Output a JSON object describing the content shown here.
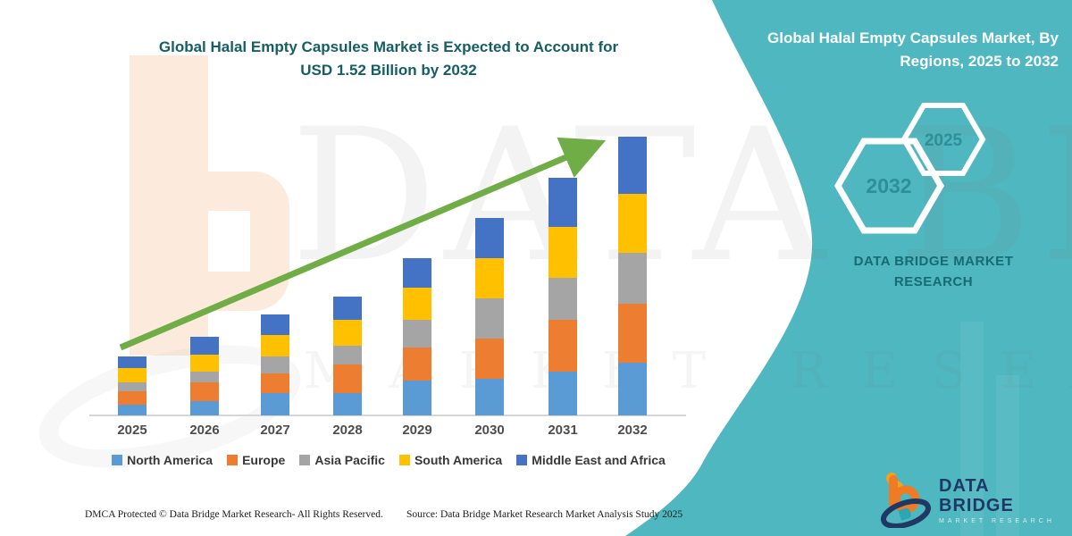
{
  "header": {
    "chart_title_line1": "Global Halal Empty Capsules Market is Expected to Account for",
    "chart_title_line2": "USD 1.52 Billion by 2032"
  },
  "side_panel": {
    "title": "Global Halal Empty Capsules Market, By Regions, 2025 to 2032",
    "hexagon_back_label": "2032",
    "hexagon_front_label": "2025",
    "brand_line1": "DATA BRIDGE MARKET",
    "brand_line2": "RESEARCH",
    "panel_color": "#4FB7C0"
  },
  "logo": {
    "name": "DATA BRIDGE",
    "tagline": "MARKET RESEARCH"
  },
  "watermark": {
    "text_primary": "DATA BRIDGE",
    "text_secondary": "MARKET RESEARCH"
  },
  "footer": {
    "left": "DMCA Protected © Data Bridge Market Research-  All Rights Reserved.",
    "right": "Source: Data Bridge Market Research  Market Analysis Study 2025"
  },
  "chart_data": {
    "type": "bar",
    "stacked": true,
    "title": "Global Halal Empty Capsules Market is Expected to Account for USD 1.52 Billion by 2032",
    "unit": "USD Billion",
    "categories": [
      "2025",
      "2026",
      "2027",
      "2028",
      "2029",
      "2030",
      "2031",
      "2032"
    ],
    "series": [
      {
        "name": "North America",
        "color": "#5B9BD5",
        "values": [
          0.06,
          0.08,
          0.12,
          0.12,
          0.19,
          0.2,
          0.24,
          0.29
        ]
      },
      {
        "name": "Europe",
        "color": "#ED7D31",
        "values": [
          0.07,
          0.1,
          0.11,
          0.16,
          0.18,
          0.22,
          0.28,
          0.32
        ]
      },
      {
        "name": "Asia Pacific",
        "color": "#A5A5A5",
        "values": [
          0.05,
          0.06,
          0.09,
          0.1,
          0.15,
          0.22,
          0.23,
          0.28
        ]
      },
      {
        "name": "South America",
        "color": "#FFC000",
        "values": [
          0.08,
          0.09,
          0.12,
          0.14,
          0.18,
          0.22,
          0.28,
          0.32
        ]
      },
      {
        "name": "Middle East and Africa",
        "color": "#4472C4",
        "values": [
          0.06,
          0.1,
          0.11,
          0.13,
          0.16,
          0.22,
          0.27,
          0.31
        ]
      }
    ],
    "totals": [
      0.32,
      0.43,
      0.55,
      0.65,
      0.86,
      1.08,
      1.3,
      1.52
    ],
    "ylim": [
      0,
      1.6
    ],
    "gridlines": false,
    "axis_labels_shown": false,
    "legend_position": "bottom",
    "trend_arrow": true,
    "trend_arrow_color": "#70AD47"
  }
}
